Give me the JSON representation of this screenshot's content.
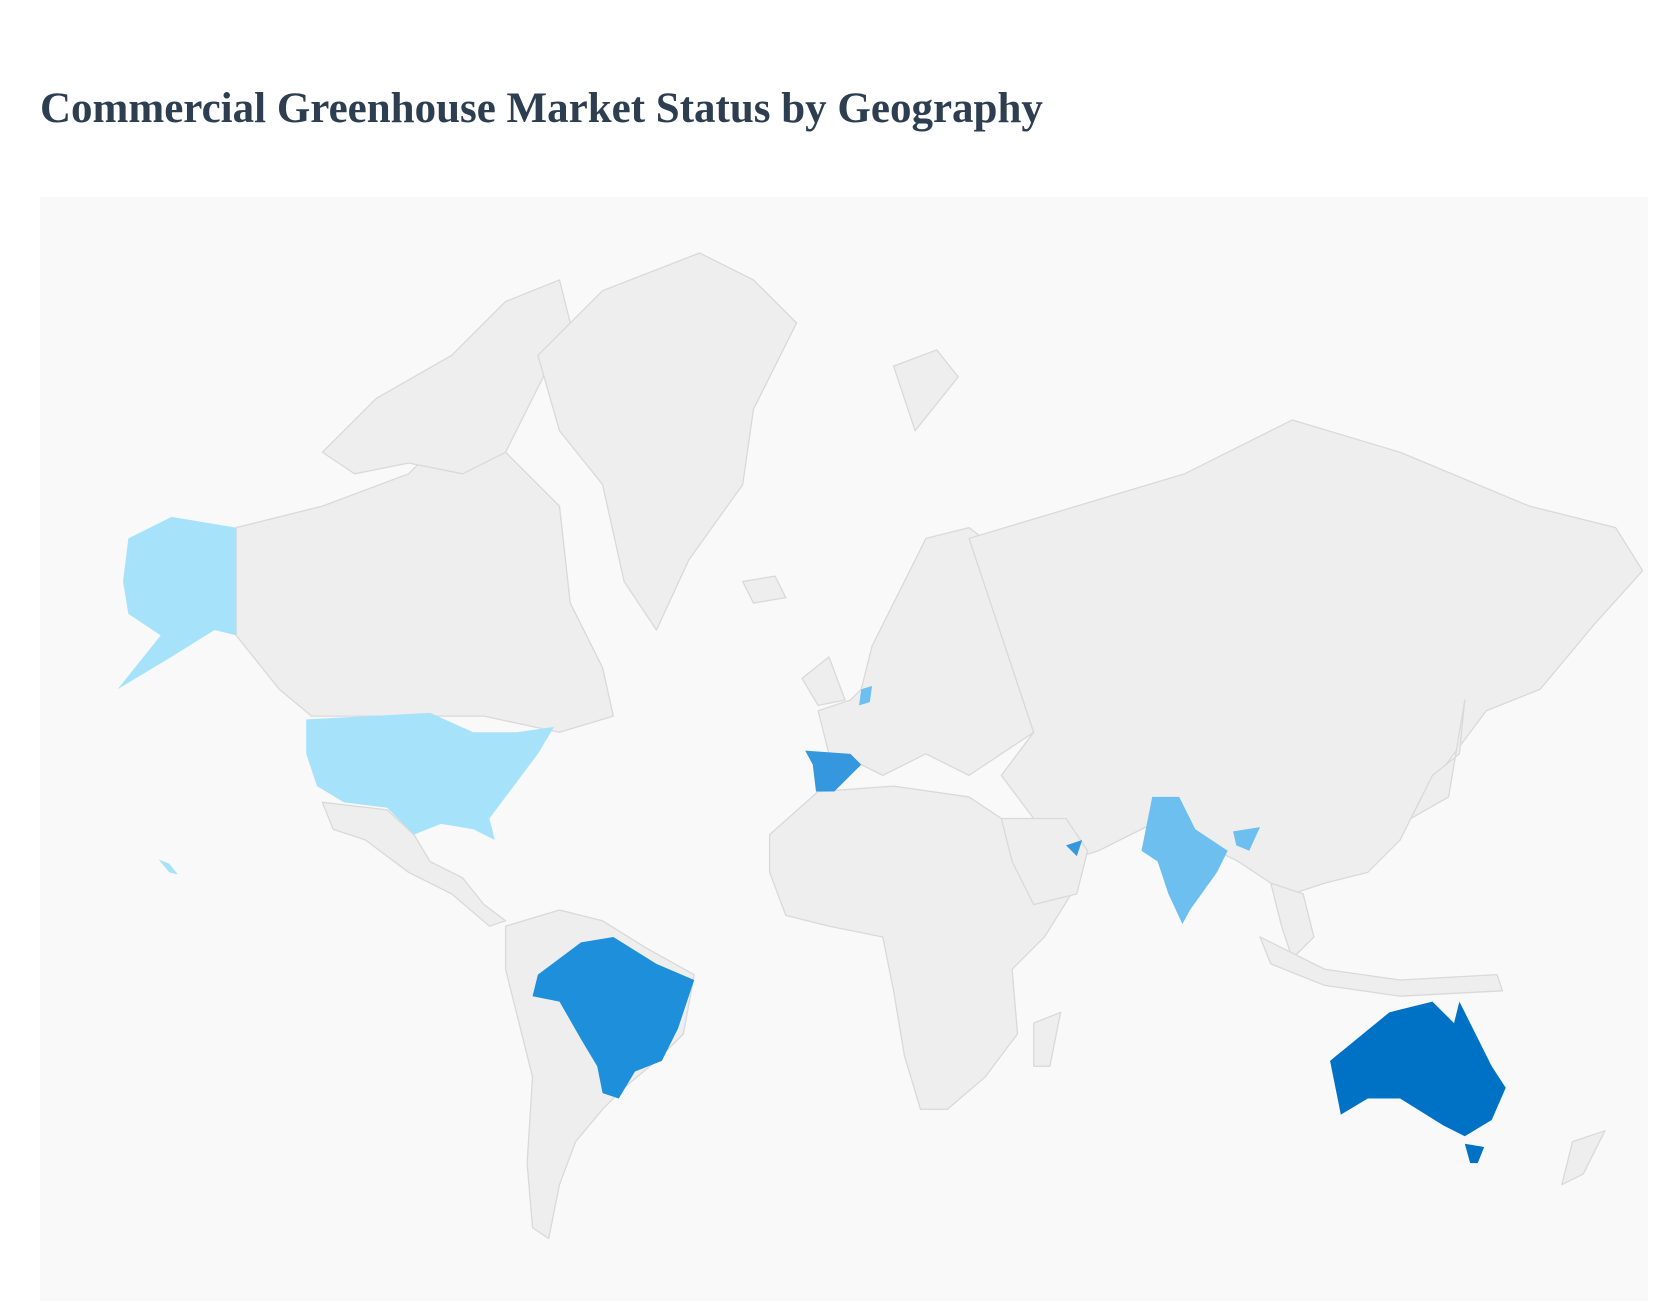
{
  "title": "Commercial Greenhouse Market Status by Geography",
  "map": {
    "type": "choropleth",
    "projection": "mercator",
    "base_land_color": "#eeeeee",
    "border_color": "#d9d9d9",
    "ocean_color": "#f9f9f9",
    "highlighted_countries": [
      {
        "name": "United States",
        "color": "#a6e3fb"
      },
      {
        "name": "Netherlands",
        "color": "#6cbfee"
      },
      {
        "name": "Spain",
        "color": "#3597dd"
      },
      {
        "name": "United Arab Emirates",
        "color": "#3597dd"
      },
      {
        "name": "India",
        "color": "#6cbfee"
      },
      {
        "name": "Bangladesh",
        "color": "#6cbfee"
      },
      {
        "name": "Brazil",
        "color": "#1e8fdb"
      },
      {
        "name": "Australia",
        "color": "#0072c6"
      }
    ]
  }
}
